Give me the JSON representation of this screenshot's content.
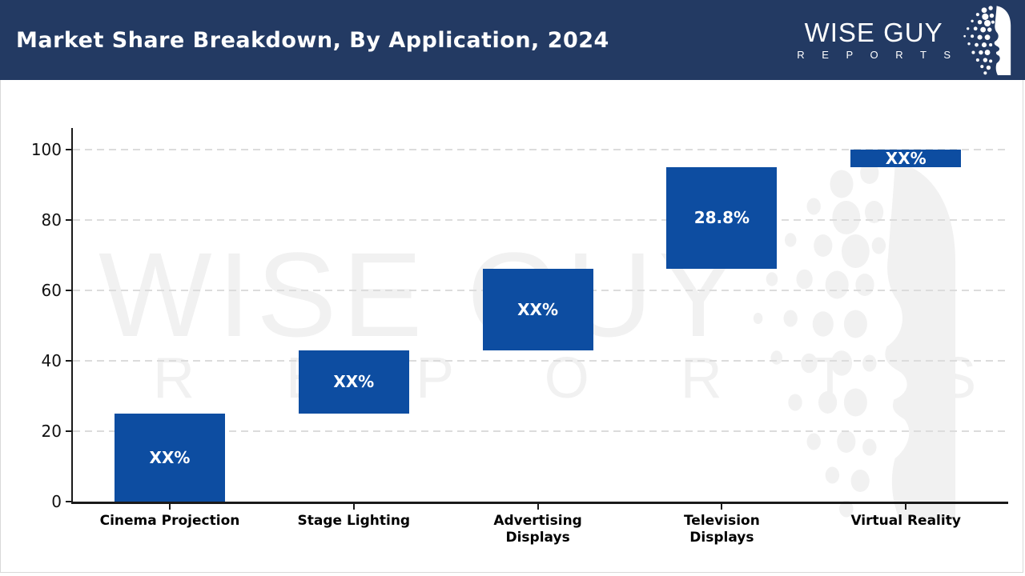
{
  "header": {
    "title": "Market Share Breakdown, By Application, 2024",
    "logo": {
      "name": "WISE GUY",
      "tagline": "R E P O R T S"
    }
  },
  "watermark": {
    "name": "WISE GUY",
    "tagline": "R E P O R T S"
  },
  "chart_data": {
    "type": "bar",
    "subtype": "floating-waterfall",
    "title": "Market Share Breakdown, By Application, 2024",
    "categories": [
      "Cinema Projection",
      "Stage Lighting",
      "Advertising Displays",
      "Television Displays",
      "Virtual Reality"
    ],
    "category_lines": [
      [
        "Cinema Projection"
      ],
      [
        "Stage Lighting"
      ],
      [
        "Advertising",
        "Displays"
      ],
      [
        "Television",
        "Displays"
      ],
      [
        "Virtual Reality"
      ]
    ],
    "series": [
      {
        "name": "Market share (%)",
        "bar_ranges": [
          [
            0,
            25
          ],
          [
            25,
            43
          ],
          [
            43,
            66.2
          ],
          [
            66.2,
            95
          ],
          [
            95,
            100
          ]
        ],
        "segment_sizes": [
          25,
          18,
          23.2,
          28.8,
          5
        ],
        "data_labels": [
          "XX%",
          "XX%",
          "XX%",
          "28.8%",
          "XX%"
        ]
      }
    ],
    "xlabel": "",
    "ylabel": "",
    "yticks": [
      0,
      20,
      40,
      60,
      80,
      100
    ],
    "ylim": [
      0,
      105
    ],
    "grid": "horizontal-dashed",
    "legend": "none",
    "bar_color": "#0d4da1",
    "data_label_color": "#ffffff"
  },
  "colors": {
    "header_bg": "#233a63",
    "card_border": "#d9d9d9",
    "axis": "#1a1a1a",
    "gridline": "#dcdcdc",
    "watermark": "#f1f1f1",
    "background": "#ffffff"
  }
}
